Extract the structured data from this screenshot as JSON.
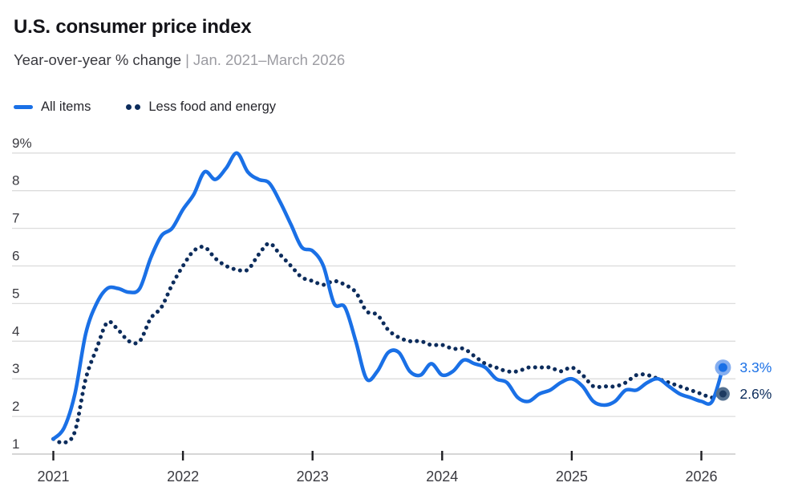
{
  "header": {
    "title": "U.S. consumer price index",
    "subtitle_primary": "Year-over-year % change",
    "subtitle_separator": "|",
    "subtitle_secondary": "Jan. 2021–March 2026"
  },
  "legend": [
    {
      "label": "All items",
      "color": "#1a70e6",
      "style": "solid"
    },
    {
      "label": "Less food and energy",
      "color": "#0c2c5c",
      "style": "dotted"
    }
  ],
  "colors": {
    "background": "#ffffff",
    "grid": "#dcdcdc",
    "axis": "#c9c9c9",
    "tick": "#1f1f23",
    "axis_label": "#3a3a40"
  },
  "chart_data": {
    "type": "line",
    "title": "U.S. consumer price index",
    "subtitle": "Year-over-year % change | Jan. 2021–March 2026",
    "xlabel": "",
    "ylabel": "Year-over-year % change",
    "x_start_month": "2021-01",
    "x_end_month": "2026-03",
    "months_per_point": 1,
    "ylim": [
      1,
      9
    ],
    "grid": "horizontal",
    "legend_position": "top-left",
    "y_ticks": [
      9,
      8,
      7,
      6,
      5,
      4,
      3,
      2,
      1
    ],
    "y_tick_labels": [
      "9%",
      "8",
      "7",
      "6",
      "5",
      "4",
      "3",
      "2",
      "1"
    ],
    "x_tick_labels": [
      "2021",
      "2022",
      "2023",
      "2024",
      "2025",
      "2026"
    ],
    "series": [
      {
        "name": "All items",
        "style": "solid",
        "color": "#1a70e6",
        "end_label": "3.3%",
        "marker": {
          "halo_color": "#85aeef",
          "dot_color": "#1a70e6",
          "halo_r": 10,
          "dot_r": 5.5
        },
        "values": [
          1.4,
          1.7,
          2.6,
          4.2,
          5.0,
          5.4,
          5.4,
          5.3,
          5.4,
          6.2,
          6.8,
          7.0,
          7.5,
          7.9,
          8.5,
          8.3,
          8.6,
          9.0,
          8.5,
          8.3,
          8.2,
          7.7,
          7.1,
          6.5,
          6.4,
          6.0,
          5.0,
          4.9,
          4.0,
          3.0,
          3.2,
          3.7,
          3.7,
          3.2,
          3.1,
          3.4,
          3.1,
          3.2,
          3.5,
          3.4,
          3.3,
          3.0,
          2.9,
          2.5,
          2.4,
          2.6,
          2.7,
          2.9,
          3.0,
          2.8,
          2.4,
          2.3,
          2.4,
          2.7,
          2.7,
          2.9,
          3.0,
          2.8,
          2.6,
          2.5,
          2.4,
          2.4,
          3.3
        ]
      },
      {
        "name": "Less food and energy",
        "style": "dotted",
        "color": "#0c2c5c",
        "end_label": "2.6%",
        "marker": {
          "halo_color": "#54708f",
          "dot_color": "#1d3a60",
          "halo_r": 8.5,
          "dot_r": 4.5
        },
        "values": [
          1.4,
          1.3,
          1.6,
          3.0,
          3.8,
          4.5,
          4.3,
          4.0,
          4.0,
          4.6,
          4.9,
          5.5,
          6.0,
          6.4,
          6.5,
          6.2,
          6.0,
          5.9,
          5.9,
          6.3,
          6.6,
          6.3,
          6.0,
          5.7,
          5.6,
          5.5,
          5.6,
          5.5,
          5.3,
          4.8,
          4.7,
          4.3,
          4.1,
          4.0,
          4.0,
          3.9,
          3.9,
          3.8,
          3.8,
          3.6,
          3.4,
          3.3,
          3.2,
          3.2,
          3.3,
          3.3,
          3.3,
          3.2,
          3.3,
          3.1,
          2.8,
          2.8,
          2.8,
          2.9,
          3.1,
          3.1,
          3.0,
          2.9,
          2.8,
          2.7,
          2.6,
          2.5,
          2.6
        ]
      }
    ]
  }
}
